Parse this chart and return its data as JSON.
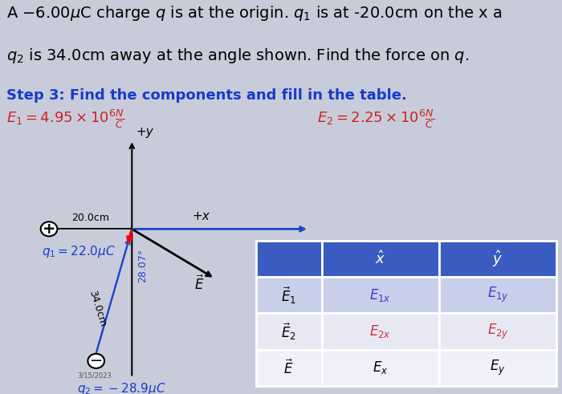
{
  "bg_color": "#c8ccda",
  "white_bg": "#ffffff",
  "diagram_bg": "#cdd1de",
  "title_line1": "A –6.00μC charge $q$ is at the origin. $q_1$ is at -20.0cm on the x a",
  "title_line2": "$q_2$ is 34.0cm away at the angle shown. Find the force on $q$.",
  "step_text": "Step 3: Find the components and fill in the table.",
  "step_color": "#1a3acc",
  "E1_label": "$E_1 = 4.95 \\times 10^6 \\dfrac{N}{C}$",
  "E2_label": "$E_2 = 2.25 \\times 10^6 \\dfrac{N}{C}$",
  "E_color": "#cc2222",
  "q1_label": "$q_1 = 22.0\\mu C$",
  "q1_color": "#1a3acc",
  "q2_label": "$q_2 = -28.9\\mu C$",
  "q2_color": "#1a3acc",
  "dist_20": "20.0cm",
  "dist_34": "34.0cm",
  "dist_28": "28.07°",
  "table_header_color": "#3a5bbf",
  "table_header_text": "#ffffff",
  "table_row1_color": "#c8cfe8",
  "table_row2_color": "#e8e8f5",
  "table_row3_color": "#f0f0fa",
  "table_E1x_color": "#3a3acc",
  "table_E2x_color": "#cc3333",
  "table_black": "#111111"
}
